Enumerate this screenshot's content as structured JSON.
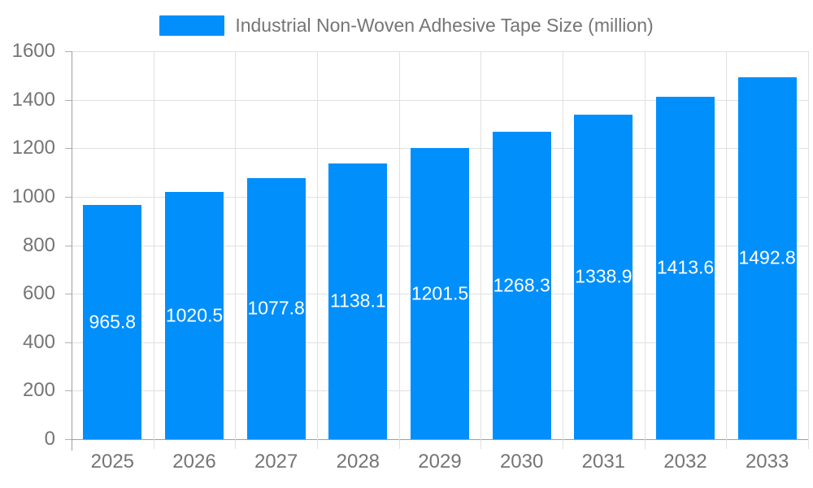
{
  "legend": {
    "label": "Industrial Non-Woven Adhesive Tape Size (million)"
  },
  "chart_data": {
    "type": "bar",
    "title": "Industrial Non-Woven Adhesive Tape Size (million)",
    "series_name": "Industrial Non-Woven Adhesive Tape Size (million)",
    "categories": [
      "2025",
      "2026",
      "2027",
      "2028",
      "2029",
      "2030",
      "2031",
      "2032",
      "2033"
    ],
    "values": [
      965.8,
      1020.5,
      1077.8,
      1138.1,
      1201.5,
      1268.3,
      1338.9,
      1413.6,
      1492.8
    ],
    "value_labels": [
      "965.8",
      "1020.5",
      "1077.8",
      "1138.1",
      "1201.5",
      "1268.3",
      "1338.9",
      "1413.6",
      "1492.8"
    ],
    "xlabel": "",
    "ylabel": "",
    "ylim": [
      0,
      1600
    ],
    "ytick_step": 200,
    "ytick_labels": [
      "0",
      "200",
      "400",
      "600",
      "800",
      "1000",
      "1200",
      "1400",
      "1600"
    ],
    "grid": true,
    "legend_position": "top",
    "value_label_position": "inside-center",
    "colors": {
      "bar": "#008FFB",
      "grid": "#e0e0e0",
      "axis": "#9e9e9e",
      "tick": "#b0b0b0",
      "tick_label": "#757575",
      "value_label": "#ffffff",
      "background": "#ffffff"
    }
  }
}
